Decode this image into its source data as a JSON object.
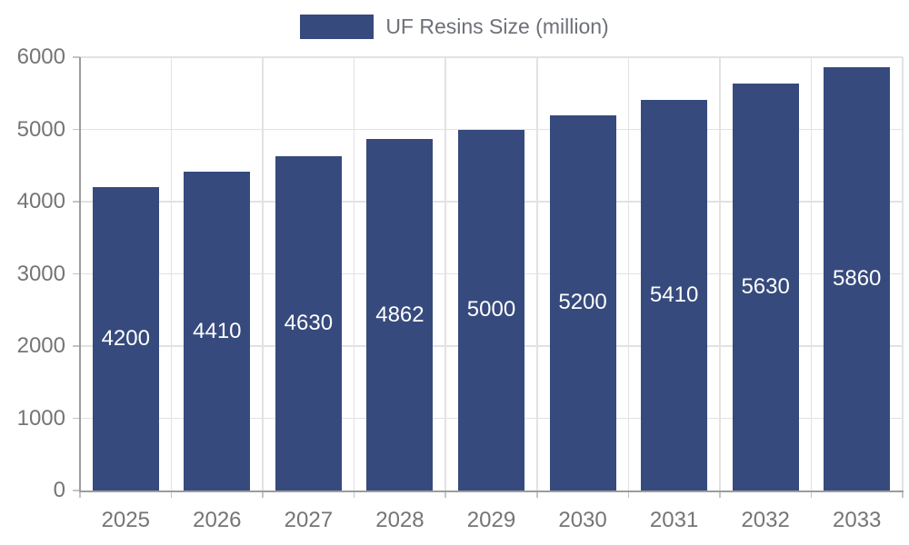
{
  "legend": {
    "label": "UF Resins Size (million)"
  },
  "colors": {
    "bar": "#364a7d",
    "grid": "#e2e2e2",
    "axis": "#9c9c9c",
    "tick": "#c4c4c4",
    "axis_label": "#757575",
    "value_label": "#ffffff",
    "legend_text": "#6e7079",
    "background": "#ffffff"
  },
  "chart_data": {
    "type": "bar",
    "title": "UF Resins Size (million)",
    "categories": [
      "2025",
      "2026",
      "2027",
      "2028",
      "2029",
      "2030",
      "2031",
      "2032",
      "2033"
    ],
    "values": [
      4200,
      4410,
      4630,
      4862,
      5000,
      5200,
      5410,
      5630,
      5860
    ],
    "series_name": "UF Resins Size (million)",
    "xlabel": "",
    "ylabel": "",
    "ylim": [
      0,
      6000
    ],
    "yticks": [
      0,
      1000,
      2000,
      3000,
      4000,
      5000,
      6000
    ],
    "grid": true,
    "legend_position": "top-center",
    "value_label_position": "inside-center"
  }
}
